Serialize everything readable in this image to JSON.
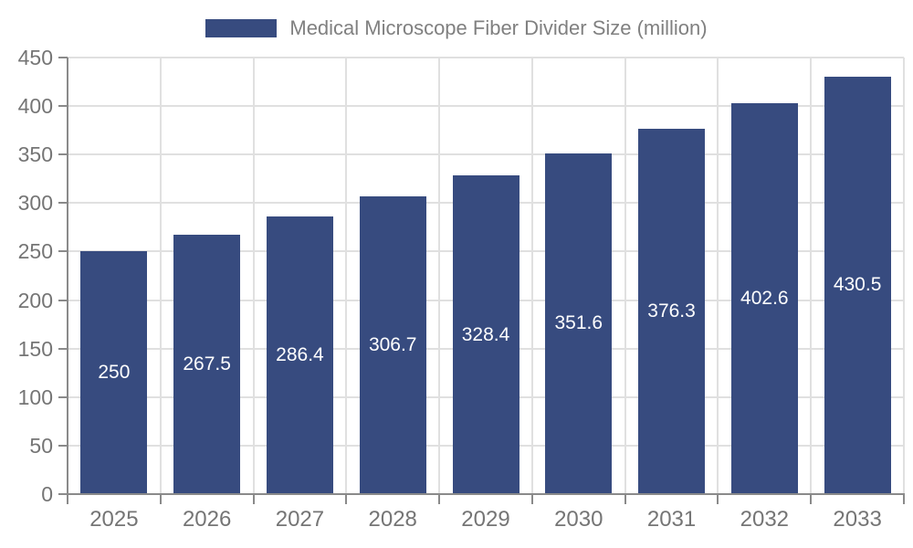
{
  "legend": {
    "label": "Medical Microscope Fiber Divider Size (million)"
  },
  "chart_data": {
    "type": "bar",
    "title": "Medical Microscope Fiber Divider Size (million)",
    "categories": [
      "2025",
      "2026",
      "2027",
      "2028",
      "2029",
      "2030",
      "2031",
      "2032",
      "2033"
    ],
    "values": [
      250,
      267.5,
      286.4,
      306.7,
      328.4,
      351.6,
      376.3,
      402.6,
      430.5
    ],
    "value_labels": [
      "250",
      "267.5",
      "286.4",
      "306.7",
      "328.4",
      "351.6",
      "376.3",
      "402.6",
      "430.5"
    ],
    "xlabel": "",
    "ylabel": "",
    "ylim": [
      0,
      450
    ],
    "ytick_step": 50,
    "yticks": [
      0,
      50,
      100,
      150,
      200,
      250,
      300,
      350,
      400,
      450
    ],
    "grid": true,
    "legend_position": "top-center",
    "colors": {
      "bar": "#374B7F",
      "grid": "#e0e0e0",
      "axis": "#8a8a8a",
      "tick_label": "#757575",
      "x_label": "#757575",
      "value_label": "#ffffff",
      "legend_text": "#808080"
    }
  }
}
